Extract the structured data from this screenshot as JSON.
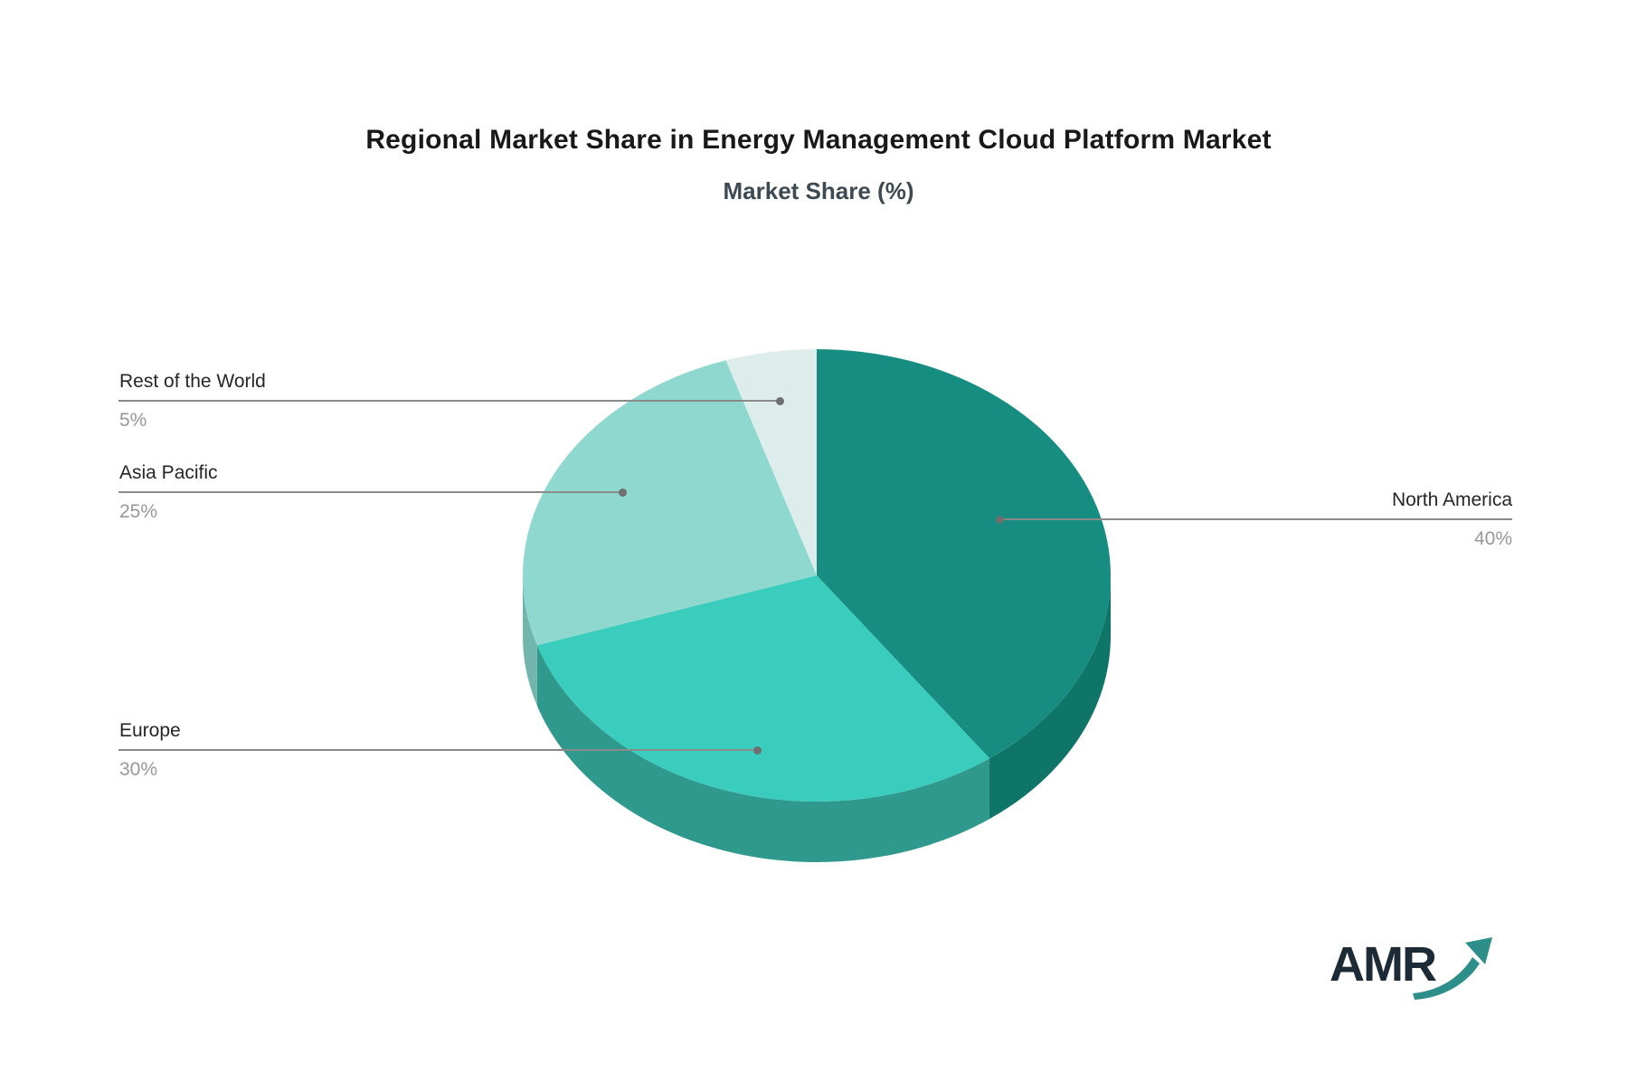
{
  "chart_data": {
    "type": "pie",
    "title": "Regional Market Share in Energy Management Cloud Platform Market",
    "subtitle": "Market Share (%)",
    "unit": "%",
    "style": "3d-pie",
    "direction": "clockwise",
    "start_angle_deg": 0,
    "legend": "none",
    "label_style": "callout-leader-lines",
    "slices": [
      {
        "label": "North America",
        "value": 40,
        "display": "40%",
        "color": "#178d81",
        "side_color": "#0e7568"
      },
      {
        "label": "Europe",
        "value": 30,
        "display": "30%",
        "color": "#3accbd",
        "side_color": "#2f998e"
      },
      {
        "label": "Asia Pacific",
        "value": 25,
        "display": "25%",
        "color": "#8fd8d0",
        "side_color": "#72b5ac"
      },
      {
        "label": "Rest of the World",
        "value": 5,
        "display": "5%",
        "color": "#dcedeb",
        "side_color": "#b8d4d0"
      }
    ]
  },
  "logo": {
    "text": "AMR"
  },
  "colors": {
    "background": "#ffffff",
    "title_text": "#191919",
    "subtitle_text": "#3e4a52",
    "label_text": "#26262a",
    "percent_text": "#97989c",
    "leader_line": "#8a8a8a",
    "leader_dot": "#6f6f6f",
    "logo_text": "#1c2b36",
    "logo_arrow": "#2e8f8a"
  }
}
